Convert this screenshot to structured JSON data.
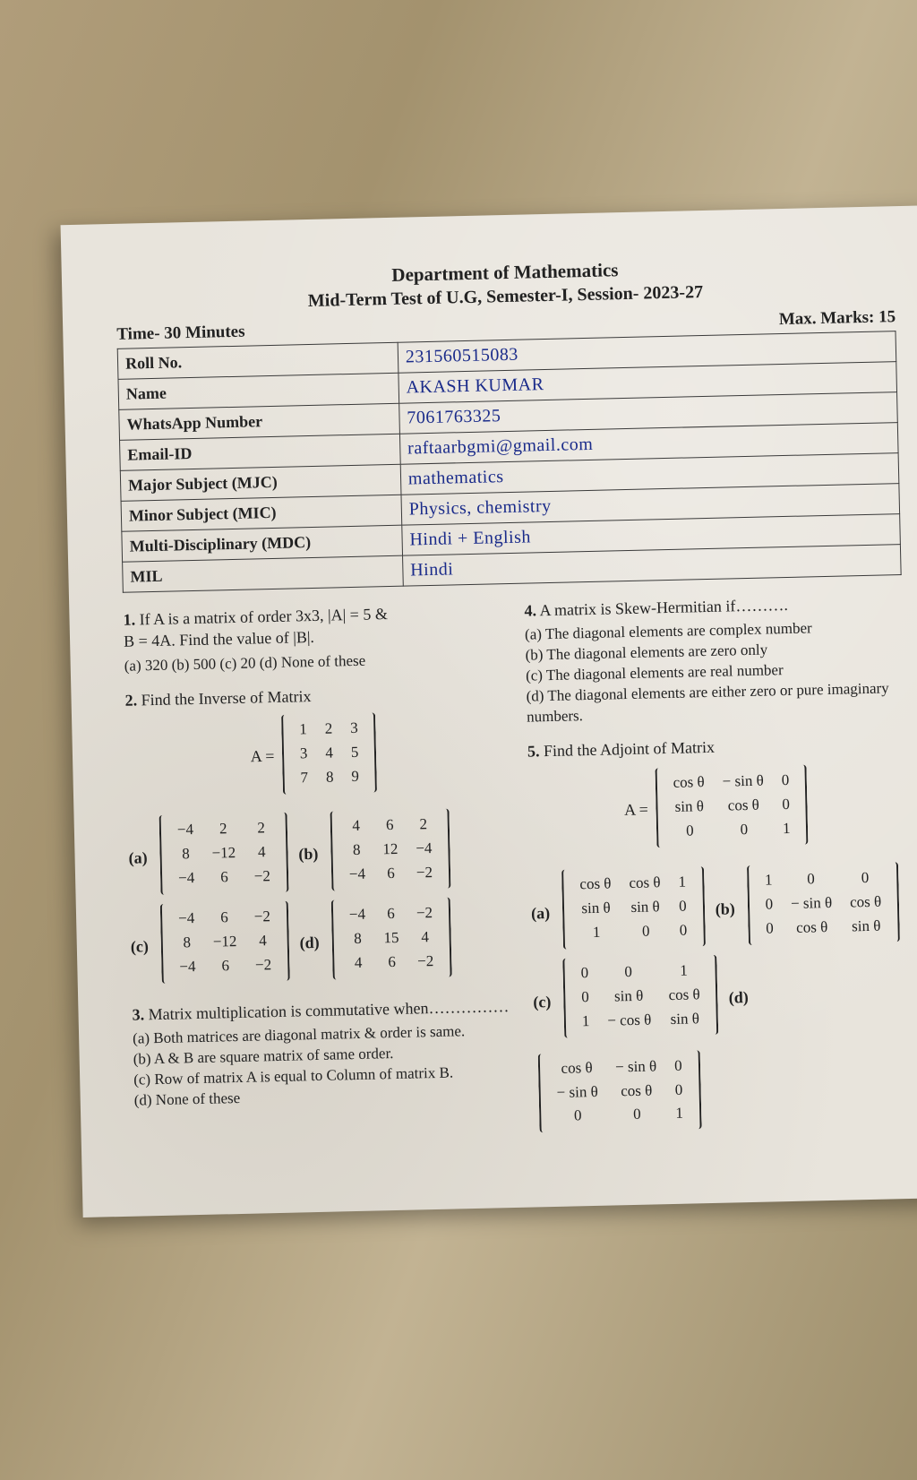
{
  "header": {
    "department": "Department of Mathematics",
    "exam": "Mid-Term Test of U.G, Semester-I, Session- 2023-27",
    "time": "Time- 30 Minutes",
    "marks": "Max. Marks: 15"
  },
  "info_rows": [
    {
      "label": "Roll No.",
      "value": "231560515083"
    },
    {
      "label": "Name",
      "value": "AKASH KUMAR"
    },
    {
      "label": "WhatsApp Number",
      "value": "7061763325"
    },
    {
      "label": "Email-ID",
      "value": "raftaarbgmi@gmail.com"
    },
    {
      "label": "Major Subject (MJC)",
      "value": "mathematics"
    },
    {
      "label": "Minor Subject (MIC)",
      "value": "Physics, chemistry"
    },
    {
      "label": "Multi-Disciplinary (MDC)",
      "value": "Hindi + English"
    },
    {
      "label": "MIL",
      "value": "Hindi"
    }
  ],
  "q1": {
    "num": "1.",
    "line1": "If A is a matrix of order 3x3, |A| = 5 &",
    "line2": "B = 4A. Find the value of |B|.",
    "opts": "(a) 320 (b) 500 (c) 20 (d) None of these"
  },
  "q2": {
    "num": "2.",
    "stem": "Find the Inverse of Matrix",
    "A_label": "A =",
    "A": [
      [
        "1",
        "2",
        "3"
      ],
      [
        "3",
        "4",
        "5"
      ],
      [
        "7",
        "8",
        "9"
      ]
    ],
    "opt_a": [
      [
        "−4",
        "2",
        "2"
      ],
      [
        "8",
        "−12",
        "4"
      ],
      [
        "−4",
        "6",
        "−2"
      ]
    ],
    "opt_b": [
      [
        "4",
        "6",
        "2"
      ],
      [
        "8",
        "12",
        "−4"
      ],
      [
        "−4",
        "6",
        "−2"
      ]
    ],
    "opt_c": [
      [
        "−4",
        "6",
        "−2"
      ],
      [
        "8",
        "−12",
        "4"
      ],
      [
        "−4",
        "6",
        "−2"
      ]
    ],
    "opt_d": [
      [
        "−4",
        "6",
        "−2"
      ],
      [
        "8",
        "15",
        "4"
      ],
      [
        "4",
        "6",
        "−2"
      ]
    ],
    "la": "(a)",
    "lb": "(b)",
    "lc": "(c)",
    "ld": "(d)"
  },
  "q3": {
    "num": "3.",
    "stem": "Matrix multiplication is commutative when……………",
    "a": "(a) Both matrices are diagonal matrix & order is same.",
    "b": "(b) A & B are square matrix of same order.",
    "c": "(c) Row of matrix A is equal to Column of matrix B.",
    "d": "(d) None of these"
  },
  "q4": {
    "num": "4.",
    "stem": "A matrix is Skew-Hermitian if……….",
    "a": "(a) The diagonal elements are complex number",
    "b": "(b) The diagonal elements are zero only",
    "c": "(c) The diagonal elements are real number",
    "d": "(d) The diagonal elements are either zero or pure imaginary numbers."
  },
  "q5": {
    "num": "5.",
    "stem": "Find the Adjoint of Matrix",
    "A_label": "A =",
    "A": [
      [
        "cos θ",
        "− sin θ",
        "0"
      ],
      [
        "sin θ",
        "cos θ",
        "0"
      ],
      [
        "0",
        "0",
        "1"
      ]
    ],
    "opt_a": [
      [
        "cos θ",
        "cos θ",
        "1"
      ],
      [
        "sin θ",
        "sin θ",
        "0"
      ],
      [
        "1",
        "0",
        "0"
      ]
    ],
    "opt_b": [
      [
        "1",
        "0",
        "0"
      ],
      [
        "0",
        "− sin θ",
        "cos θ"
      ],
      [
        "0",
        "cos θ",
        "sin θ"
      ]
    ],
    "opt_c": [
      [
        "0",
        "0",
        "1"
      ],
      [
        "0",
        "sin θ",
        "cos θ"
      ],
      [
        "1",
        "− cos θ",
        "sin θ"
      ]
    ],
    "opt_d": [
      [
        "cos θ",
        "− sin θ",
        "0"
      ],
      [
        "− sin θ",
        "cos θ",
        "0"
      ],
      [
        "0",
        "0",
        "1"
      ]
    ],
    "la": "(a)",
    "lb": "(b)",
    "lc": "(c)",
    "ld": "(d)"
  }
}
